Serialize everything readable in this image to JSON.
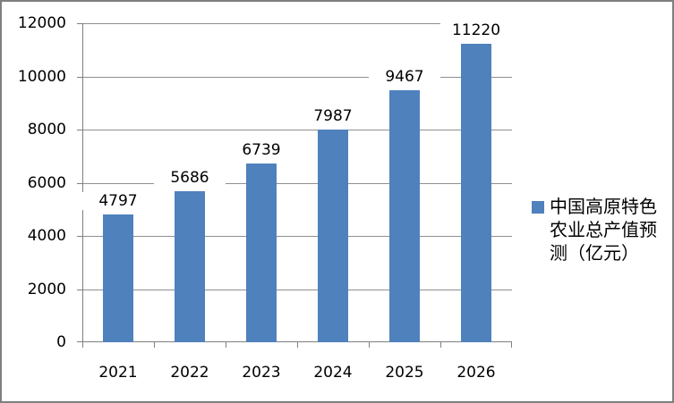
{
  "chart_data": {
    "type": "bar",
    "title": "",
    "xlabel": "",
    "ylabel": "",
    "categories": [
      "2021",
      "2022",
      "2023",
      "2024",
      "2025",
      "2026"
    ],
    "series": [
      {
        "name": "中国高原特色农业总产值预测（亿元）",
        "values": [
          4797,
          5686,
          6739,
          7987,
          9467,
          11220
        ]
      }
    ],
    "ylim": [
      0,
      12000
    ],
    "yticks": [
      0,
      2000,
      4000,
      6000,
      8000,
      10000,
      12000
    ],
    "grid": true,
    "data_labels": true,
    "legend_position": "right",
    "bar_color": "#4f81bd",
    "grid_color": "#8f8f8f",
    "axis_color": "#7f7f7f",
    "text_color": "#000000"
  },
  "legend": {
    "marker_color": "#4f81bd",
    "lines": [
      "中国高原特色",
      "农业总产值预",
      "测（亿元）"
    ]
  }
}
